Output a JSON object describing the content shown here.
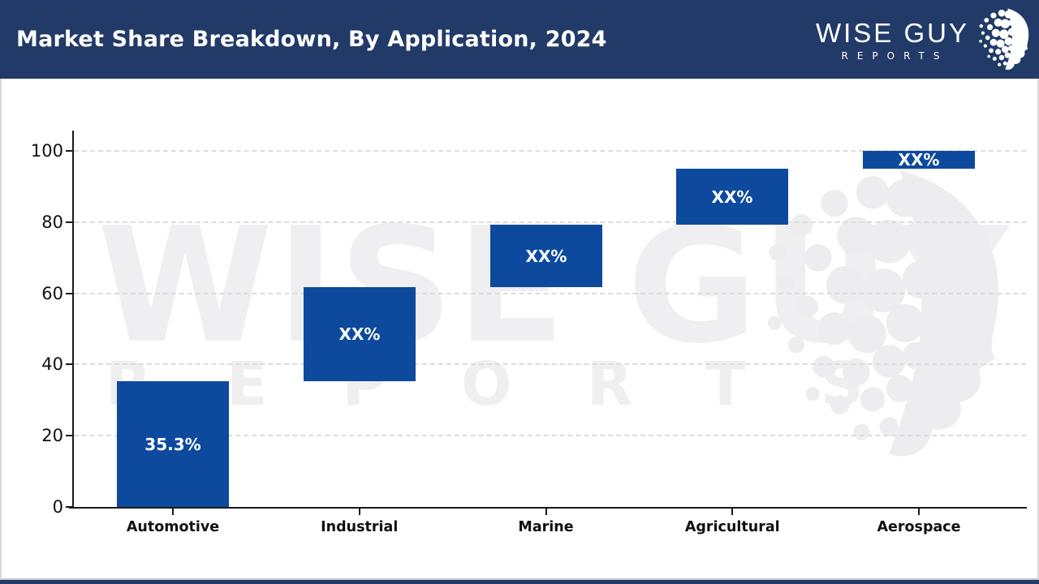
{
  "header": {
    "title": "Market Share Breakdown, By Application, 2024",
    "logo_line1": "WISE GUY",
    "logo_line2": "REPORTS",
    "bg_color": "#213a68"
  },
  "watermark": {
    "line1": "WISE GUY",
    "line2": "REPORTS"
  },
  "chart_data": {
    "type": "bar",
    "subtype": "waterfall",
    "title": "Market Share Breakdown, By Application, 2024",
    "categories": [
      "Automotive",
      "Industrial",
      "Marine",
      "Agricultural",
      "Aerospace"
    ],
    "values": [
      35.3,
      26.5,
      17.5,
      15.7,
      5.0
    ],
    "cumulative_start": [
      0,
      35.3,
      61.8,
      79.3,
      95.0
    ],
    "cumulative_end": [
      35.3,
      61.8,
      79.3,
      95.0,
      100.0
    ],
    "bar_labels": [
      "35.3%",
      "XX%",
      "XX%",
      "XX%",
      "XX%"
    ],
    "xlabel": "",
    "ylabel": "",
    "ylim": [
      0,
      100
    ],
    "yticks": [
      0,
      20,
      40,
      60,
      80,
      100
    ],
    "grid": "horizontal-dashed",
    "legend": "none",
    "bar_color": "#0d4a9e",
    "bar_label_color": "#ffffff"
  }
}
